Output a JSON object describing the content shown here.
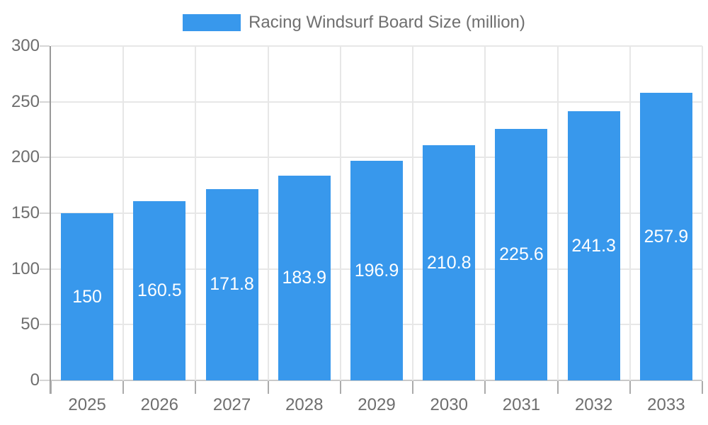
{
  "legend": {
    "label": "Racing Windsurf Board Size (million)",
    "swatch_color": "#3898ec"
  },
  "chart_data": {
    "type": "bar",
    "title": "Racing Windsurf Board Size (million)",
    "categories": [
      "2025",
      "2026",
      "2027",
      "2028",
      "2029",
      "2030",
      "2031",
      "2032",
      "2033"
    ],
    "values": [
      150,
      160.5,
      171.8,
      183.9,
      196.9,
      210.8,
      225.6,
      241.3,
      257.9
    ],
    "value_labels": [
      "150",
      "160.5",
      "171.8",
      "183.9",
      "196.9",
      "210.8",
      "225.6",
      "241.3",
      "257.9"
    ],
    "xlabel": "",
    "ylabel": "",
    "ylim": [
      0,
      300
    ],
    "yticks": [
      0,
      50,
      100,
      150,
      200,
      250,
      300
    ],
    "grid": true,
    "legend_position": "top-center",
    "bar_color": "#3898ec",
    "value_label_color": "#ffffff",
    "axis_label_color": "#6e6e6e"
  }
}
